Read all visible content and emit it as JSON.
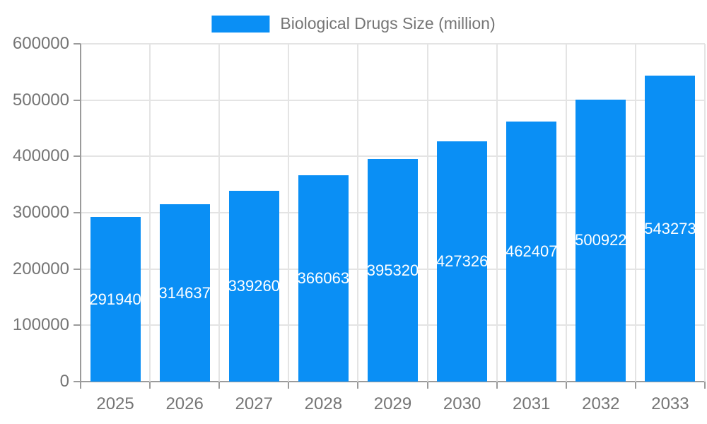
{
  "legend": {
    "label": "Biological Drugs Size (million)"
  },
  "chart_data": {
    "type": "bar",
    "title": "Biological Drugs Size (million)",
    "series_name": "Biological Drugs Size (million)",
    "categories": [
      "2025",
      "2026",
      "2027",
      "2028",
      "2029",
      "2030",
      "2031",
      "2032",
      "2033"
    ],
    "values": [
      291940,
      314637,
      339260,
      366063,
      395320,
      427326,
      462407,
      500922,
      543273
    ],
    "value_labels": [
      "291940",
      "314637",
      "339260",
      "366063",
      "395320",
      "427326",
      "462407",
      "500922",
      "543273"
    ],
    "xlabel": "",
    "ylabel": "",
    "ylim": [
      0,
      600000
    ],
    "yticks": [
      0,
      100000,
      200000,
      300000,
      400000,
      500000,
      600000
    ],
    "ytick_labels": [
      "0",
      "100000",
      "200000",
      "300000",
      "400000",
      "500000",
      "600000"
    ],
    "grid": true,
    "legend_position": "top",
    "colors": {
      "bar": "#0a8ff5",
      "value_label": "#ffffff",
      "axis_label": "#757575",
      "gridline": "#e4e4e4",
      "axis_line": "#9b9b9b",
      "background": "#ffffff"
    }
  }
}
